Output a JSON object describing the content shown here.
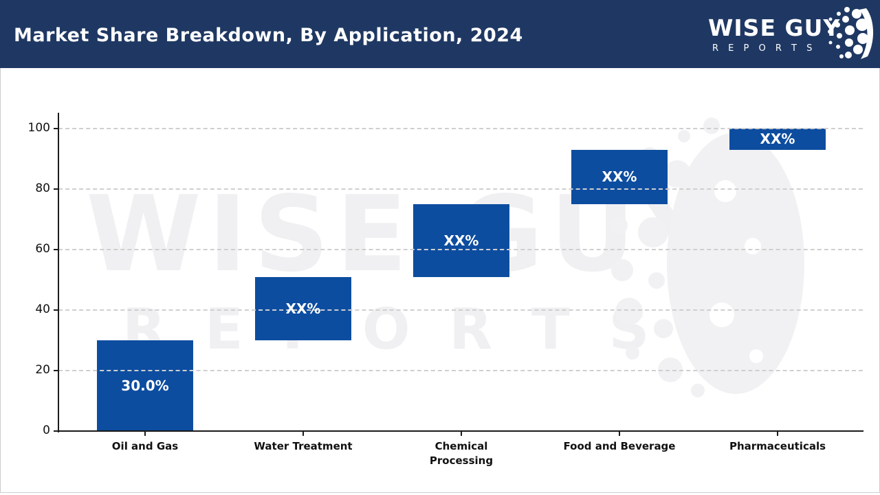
{
  "header": {
    "title": "Market Share Breakdown, By Application, 2024",
    "logo": {
      "wordmark": "WISE GUY",
      "sub": "R E P O R T S"
    }
  },
  "watermark": {
    "line1": "WISE GUY",
    "line2": "R E P O R T S"
  },
  "colors": {
    "header_bg": "#1f3863",
    "bar_blue": "#0d4da0",
    "grid_gray": "#cfcfcf",
    "watermark_gray": "#f0f0f2",
    "text_dark": "#111111"
  },
  "chart_data": {
    "type": "bar",
    "subtype": "waterfall",
    "title": "Market Share Breakdown, By Application, 2024",
    "categories": [
      "Oil and Gas",
      "Water Treatment",
      "Chemical\nProcessing",
      "Food and Beverage",
      "Pharmaceuticals"
    ],
    "series": [
      {
        "name": "Market Share",
        "segments": [
          {
            "category": "Oil and Gas",
            "start": 0,
            "end": 30,
            "label": "30.0%"
          },
          {
            "category": "Water Treatment",
            "start": 30,
            "end": 51,
            "label": "XX%"
          },
          {
            "category": "Chemical Processing",
            "start": 51,
            "end": 75,
            "label": "XX%"
          },
          {
            "category": "Food and Beverage",
            "start": 75,
            "end": 93,
            "label": "XX%"
          },
          {
            "category": "Pharmaceuticals",
            "start": 93,
            "end": 100,
            "label": "XX%"
          }
        ]
      }
    ],
    "xlabel": "",
    "ylabel": "",
    "ylim": [
      0,
      100
    ],
    "yticks": [
      0,
      20,
      40,
      60,
      80,
      100
    ],
    "grid": "horizontal dashed, drawn above bars",
    "legend": "none",
    "bar_color": "#0d4da0",
    "bar_label_color": "#ffffff"
  }
}
